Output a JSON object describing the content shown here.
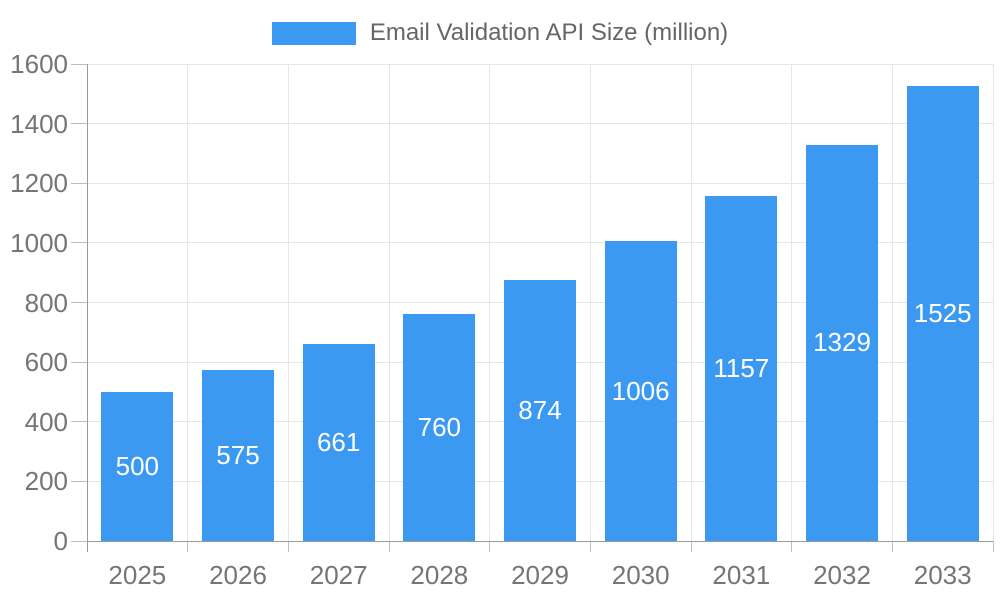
{
  "chart_data": {
    "type": "bar",
    "title": "Email Validation API Size (million)",
    "categories": [
      "2025",
      "2026",
      "2027",
      "2028",
      "2029",
      "2030",
      "2031",
      "2032",
      "2033"
    ],
    "values": [
      500,
      575,
      661,
      760,
      874,
      1006,
      1157,
      1329,
      1525
    ],
    "ytick_labels": [
      "0",
      "200",
      "400",
      "600",
      "800",
      "1000",
      "1200",
      "1400",
      "1600"
    ],
    "ylim": [
      0,
      1600
    ],
    "ytick_step": 200,
    "xlabel": "",
    "ylabel": "",
    "grid": true,
    "legend_position": "top-center",
    "bar_labels_inside": true,
    "colors": {
      "bar": "#3b99f1",
      "bar_label": "#ffffff",
      "axis_text": "#757575",
      "legend_text": "#666666",
      "grid_line": "#e6e6e6",
      "axis_line": "#9a9a9a",
      "tick_mark": "#bdbdbd"
    }
  }
}
